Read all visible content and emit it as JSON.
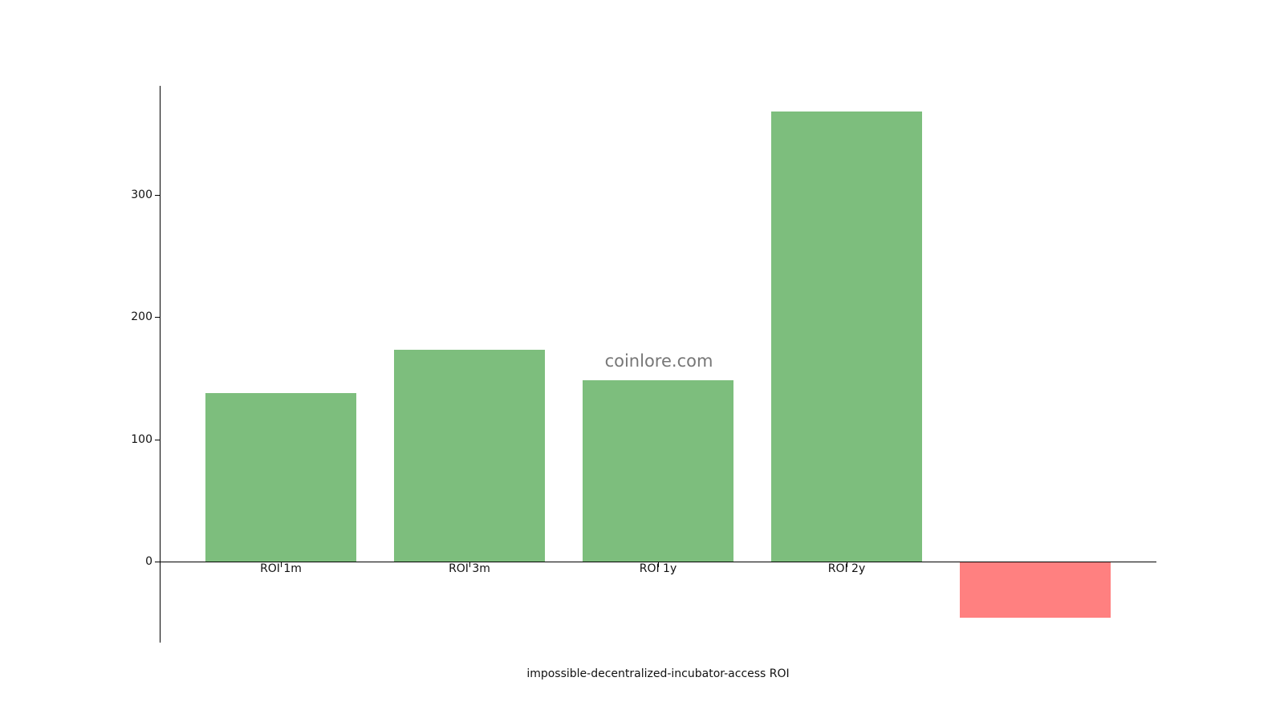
{
  "chart_data": {
    "type": "bar",
    "categories": [
      "ROI 1m",
      "ROI 3m",
      "ROI 1y",
      "ROI 2y",
      ""
    ],
    "values": [
      137.9,
      173.3,
      148.4,
      368.3,
      -45.3
    ],
    "bar_colors": [
      "#7dbe7d",
      "#7dbe7d",
      "#7dbe7d",
      "#7dbe7d",
      "#ff8080"
    ],
    "positive_color": "#7dbe7d",
    "negative_color": "#ff8080",
    "title": "",
    "xlabel": "impossible-decentralized-incubator-access ROI",
    "ylabel": "",
    "ytick_labels": [
      "0",
      "100",
      "200",
      "300"
    ],
    "ytick_values": [
      0,
      100,
      200,
      300
    ],
    "ylim": [
      -66,
      389
    ],
    "grid": false,
    "legend": null
  },
  "watermark": {
    "text": "coinlore.com",
    "color": "#777777"
  },
  "axis_color": "#000000"
}
